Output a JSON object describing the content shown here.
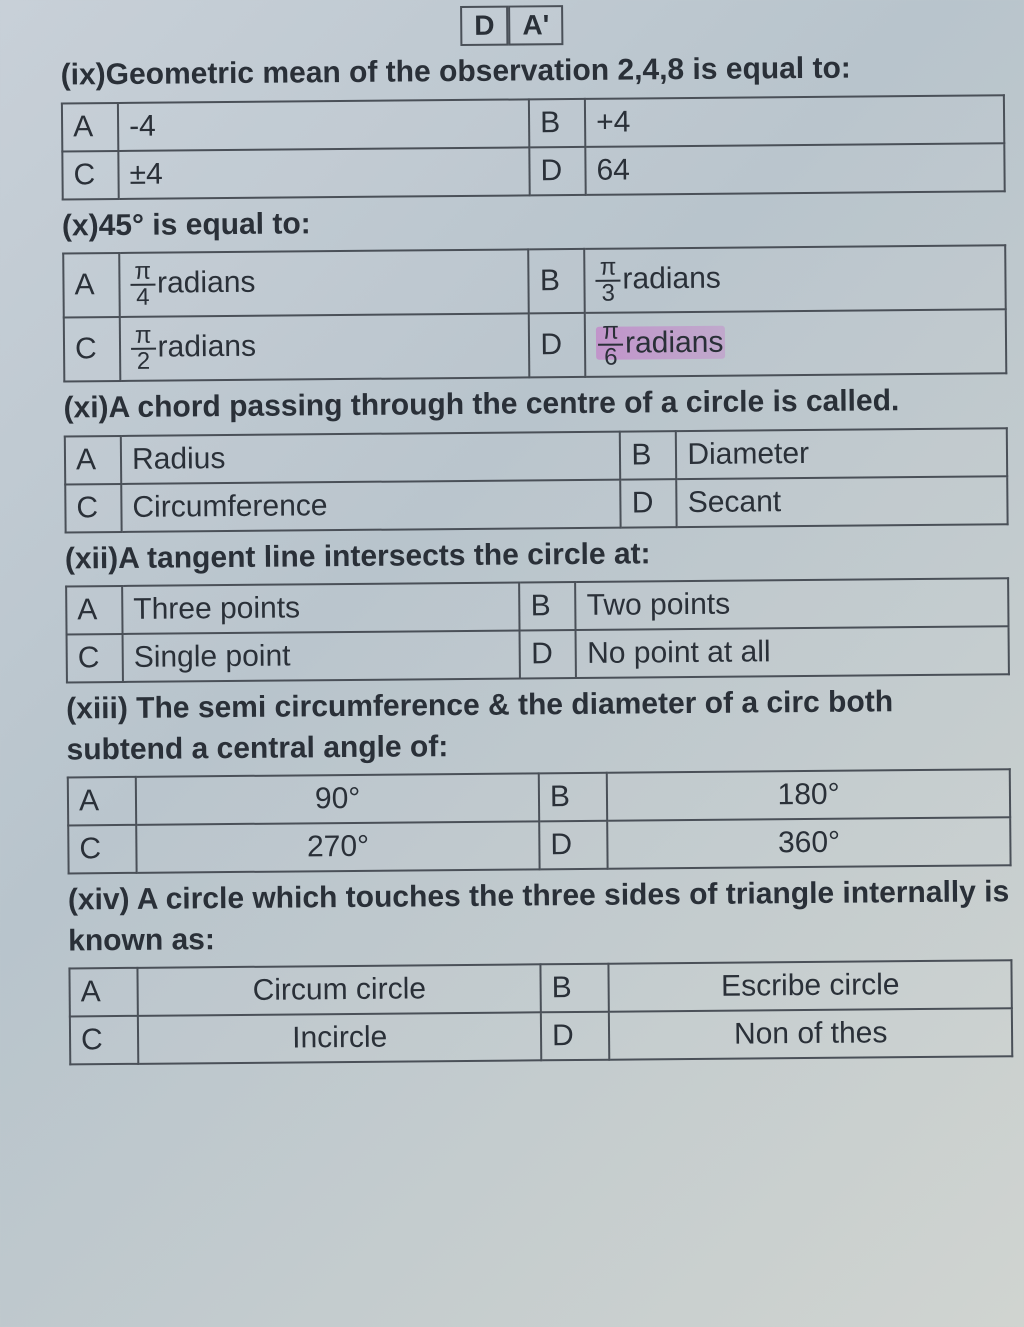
{
  "partial": {
    "d_label": "D",
    "d_value": "A'"
  },
  "q_ix": {
    "prompt": "(ix)Geometric mean of the observation 2,4,8 is equal to:",
    "A": "-4",
    "B": "+4",
    "C": "±4",
    "D": "64"
  },
  "q_x": {
    "prompt": "(x)45° is equal to:",
    "A_num": "π",
    "A_den": "4",
    "A_suf": "radians",
    "B_num": "π",
    "B_den": "3",
    "B_suf": "radians",
    "C_num": "π",
    "C_den": "2",
    "C_suf": "radians",
    "D_num": "π",
    "D_den": "6",
    "D_suf": "radians"
  },
  "q_xi": {
    "prompt": "(xi)A chord passing through the centre of a circle is called.",
    "A": "Radius",
    "B": "Diameter",
    "C": "Circumference",
    "D": "Secant"
  },
  "q_xii": {
    "prompt": "(xii)A tangent line intersects the circle at:",
    "A": "Three points",
    "B": "Two points",
    "C": "Single point",
    "D": "No point at all"
  },
  "q_xiii": {
    "prompt": "(xiii) The semi circumference & the diameter of a circ both subtend a central angle of:",
    "A": "90°",
    "B": "180°",
    "C": "270°",
    "D": "360°"
  },
  "q_xiv": {
    "prompt": "(xiv) A circle which touches the three sides of triangle internally is known as:",
    "A": "Circum circle",
    "B": "Escribe circle",
    "C": "Incircle",
    "D": "Non of thes"
  },
  "labels": {
    "A": "A",
    "B": "B",
    "C": "C",
    "D": "D"
  }
}
